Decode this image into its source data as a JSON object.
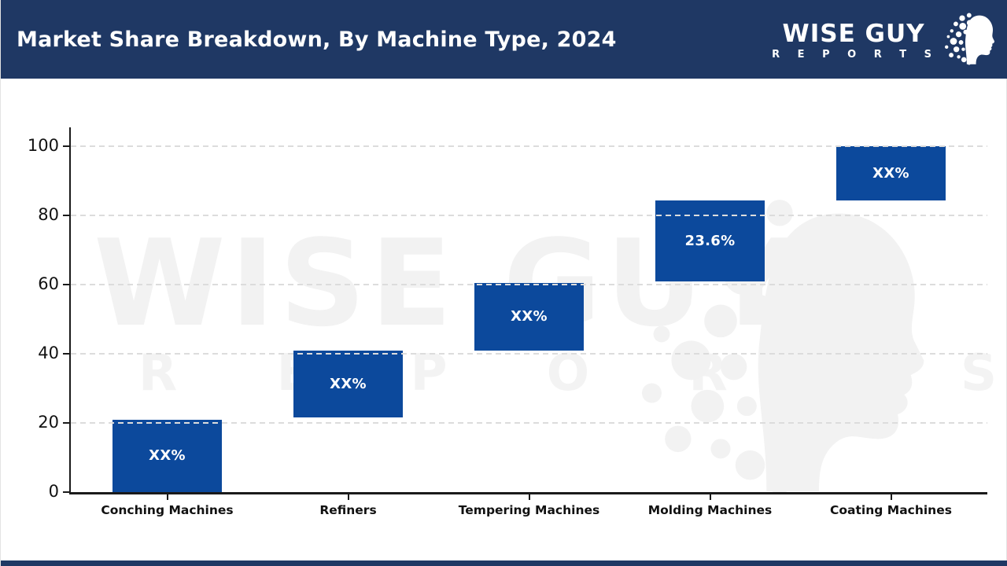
{
  "header": {
    "title": "Market Share Breakdown, By Machine Type, 2024",
    "logo": {
      "line1": "WISE GUY",
      "line2": "R E P O R T S"
    }
  },
  "watermark": {
    "line1": "WISE GUY",
    "line2": "R E P O R T S"
  },
  "colors": {
    "header_bg": "#1f3864",
    "footer_bg": "#1f3864",
    "bar": "#0c499c",
    "grid": "#dcdcdc",
    "axis": "#1a1a1a",
    "bar_label": "#ffffff",
    "watermark": "#f2f2f2"
  },
  "chart_data": {
    "type": "bar",
    "subtype": "waterfall",
    "title": "Market Share Breakdown, By Machine Type, 2024",
    "categories": [
      "Conching Machines",
      "Refiners",
      "Tempering Machines",
      "Molding Machines",
      "Coating Machines"
    ],
    "bars": [
      {
        "category": "Conching Machines",
        "start": 0,
        "end": 21,
        "label": "XX%"
      },
      {
        "category": "Refiners",
        "start": 21.5,
        "end": 41,
        "label": "XX%"
      },
      {
        "category": "Tempering Machines",
        "start": 41,
        "end": 60.5,
        "label": "XX%"
      },
      {
        "category": "Molding Machines",
        "start": 60.8,
        "end": 84.4,
        "label": "23.6%"
      },
      {
        "category": "Coating Machines",
        "start": 84.4,
        "end": 100,
        "label": "XX%"
      }
    ],
    "y_ticks": [
      0,
      20,
      40,
      60,
      80,
      100
    ],
    "ylim": [
      0,
      100
    ],
    "xlabel": "",
    "ylabel": "",
    "grid": "dashed-horizontal-over-bars",
    "legend": "none"
  }
}
